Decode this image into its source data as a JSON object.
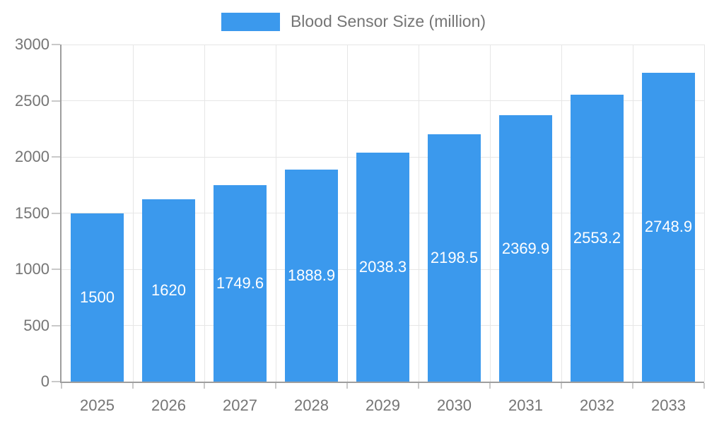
{
  "legend": {
    "label": "Blood Sensor Size (million)"
  },
  "colors": {
    "bar": "#3b99ed",
    "axis_line": "#9e9e9e",
    "gridline": "#e6e6e6",
    "tick_mark": "#c9c9c9",
    "axis_text": "#757575",
    "bar_label_text": "#ffffff",
    "background": "#ffffff"
  },
  "chart_data": {
    "type": "bar",
    "title": "",
    "xlabel": "",
    "ylabel": "",
    "legend_entries": [
      "Blood Sensor Size (million)"
    ],
    "legend_position": "top-center",
    "categories": [
      "2025",
      "2026",
      "2027",
      "2028",
      "2029",
      "2030",
      "2031",
      "2032",
      "2033"
    ],
    "series": [
      {
        "name": "Blood Sensor Size (million)",
        "values": [
          1500,
          1620,
          1749.6,
          1888.9,
          2038.3,
          2198.5,
          2369.9,
          2553.2,
          2748.9
        ],
        "data_labels": [
          "1500",
          "1620",
          "1749.6",
          "1888.9",
          "2038.3",
          "2198.5",
          "2369.9",
          "2553.2",
          "2748.9"
        ]
      }
    ],
    "ylim": [
      0,
      3000
    ],
    "ytick_step": 500,
    "yticks": [
      0,
      500,
      1000,
      1500,
      2000,
      2500,
      3000
    ],
    "grid": true,
    "data_labels_shown": true,
    "data_label_position": "center-of-bar"
  }
}
